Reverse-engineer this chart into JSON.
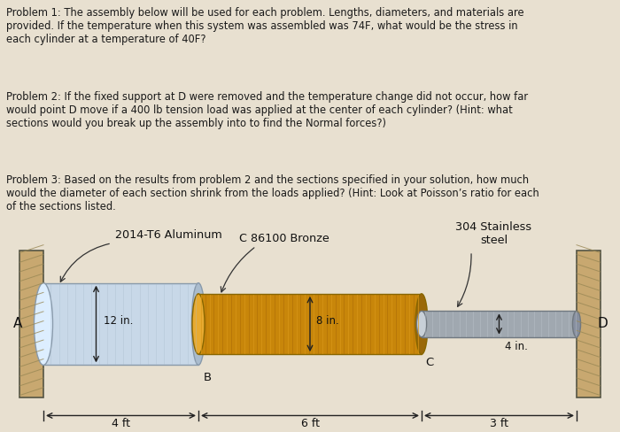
{
  "background_color": "#e8e0d0",
  "text_color": "#1a1a1a",
  "problem1": "Problem 1: The assembly below will be used for each problem. Lengths, diameters, and materials are\nprovided. If the temperature when this system was assembled was 74F, what would be the stress in\neach cylinder at a temperature of 40F?",
  "problem2": "Problem 2: If the fixed support at D were removed and the temperature change did not occur, how far\nwould point D move if a 400 lb tension load was applied at the center of each cylinder? (Hint: what\nsections would you break up the assembly into to find the Normal forces?)",
  "problem3": "Problem 3: Based on the results from problem 2 and the sections specified in your solution, how much\nwould the diameter of each section shrink from the loads applied? (Hint: Look at Poisson’s ratio for each\nof the sections listed.",
  "label_A": "A",
  "label_B": "B",
  "label_C": "C",
  "label_D": "D",
  "material_aluminum": "2014-T6 Aluminum",
  "material_bronze": "C 86100 Bronze",
  "material_steel": "304 Stainless\nsteel",
  "dim_aluminum_diameter": "12 in.",
  "dim_bronze_diameter": "8 in.",
  "dim_steel_diameter": "4 in.",
  "dim_length_A": "4 ft",
  "dim_length_B": "6 ft",
  "dim_length_C": "3 ft",
  "aluminum_color": "#c8d8e8",
  "bronze_color": "#c8860a",
  "steel_color": "#a0a8b0",
  "wall_color": "#c8a870"
}
